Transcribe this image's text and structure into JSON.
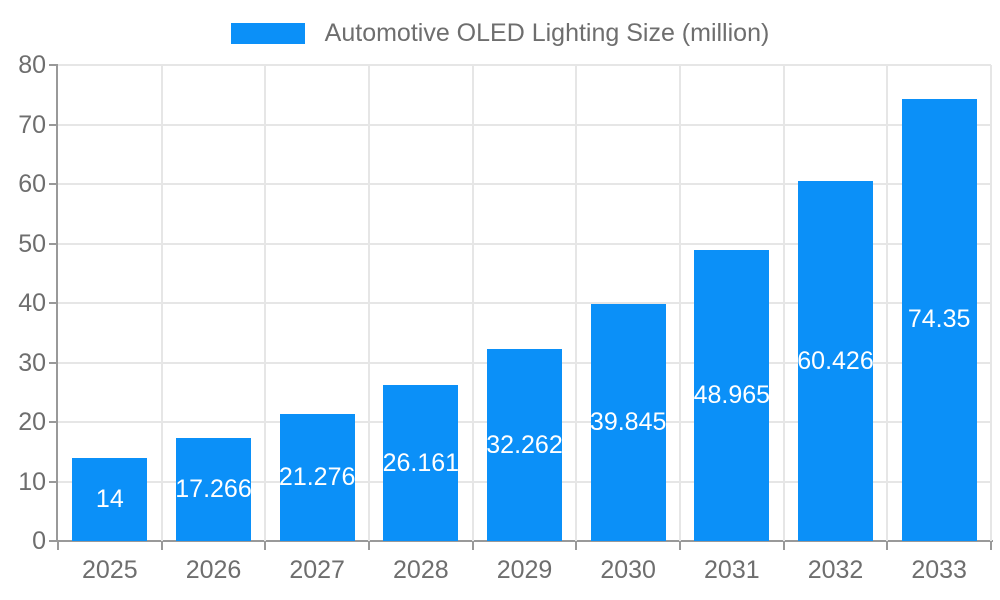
{
  "chart_data": {
    "type": "bar",
    "title": "Automotive OLED Lighting Size (million)",
    "categories": [
      "2025",
      "2026",
      "2027",
      "2028",
      "2029",
      "2030",
      "2031",
      "2032",
      "2033"
    ],
    "values": [
      14,
      17.266,
      21.276,
      26.161,
      32.262,
      39.845,
      48.965,
      60.426,
      74.35
    ],
    "value_labels": [
      "14",
      "17.266",
      "21.276",
      "26.161",
      "32.262",
      "39.845",
      "48.965",
      "60.426",
      "74.35"
    ],
    "ylim": [
      0,
      80
    ],
    "ytick_step": 10,
    "ytick_labels": [
      "0",
      "10",
      "20",
      "30",
      "40",
      "50",
      "60",
      "70",
      "80"
    ],
    "grid": true,
    "legend_position": "top",
    "colors": {
      "bar": "#0b90f8",
      "bar_label": "#ffffff",
      "axis": "#999999",
      "grid": "#e6e6e6",
      "tick_text": "#6e6e6e",
      "legend_text": "#6e6e6e",
      "background": "#ffffff"
    }
  }
}
